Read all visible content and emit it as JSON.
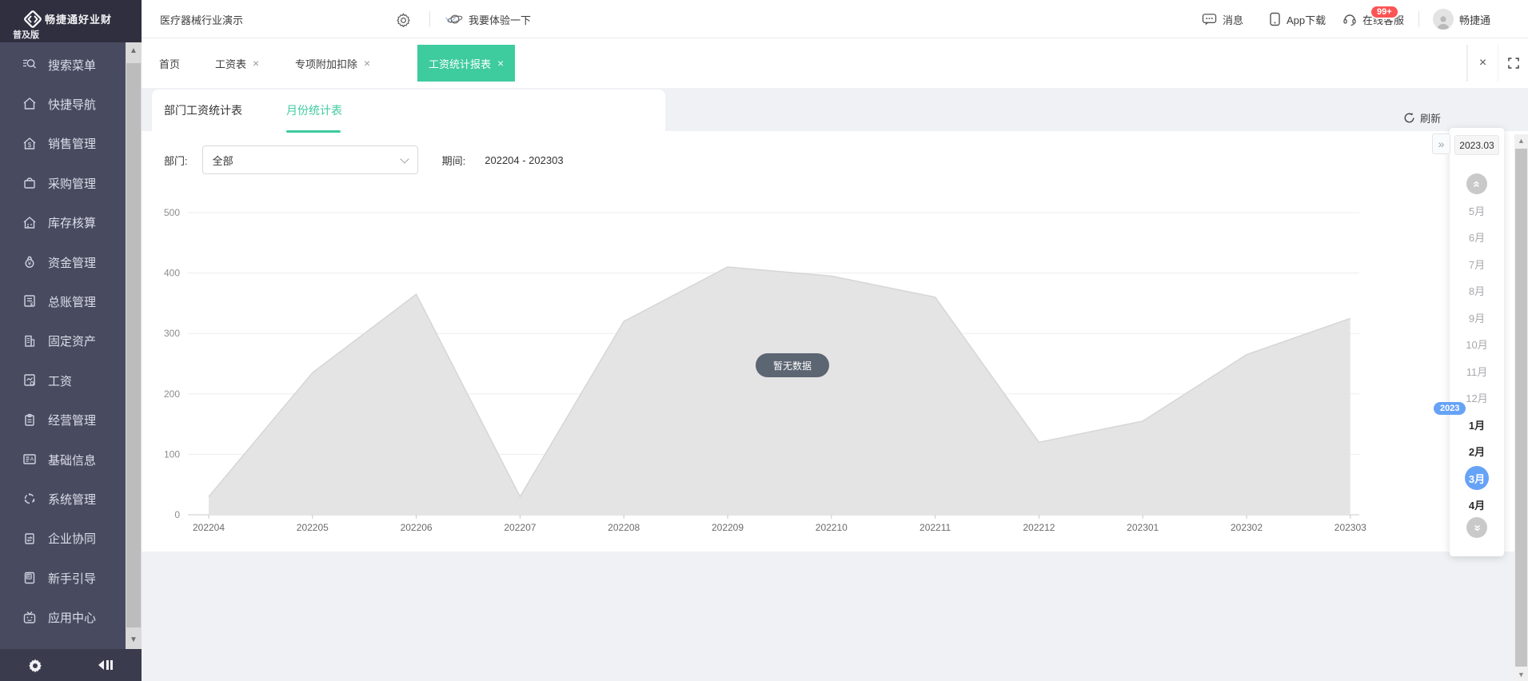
{
  "colors": {
    "accent_green": "#3ecb9e",
    "accent_blue": "#66a3f7",
    "badge_red": "#fa5555",
    "sidebar_bg": "#484b60",
    "chart_fill": "#e4e4e4"
  },
  "brand": {
    "logo_title": "畅捷通好业财",
    "edition": "普及版"
  },
  "topbar": {
    "company": "医疗器械行业演示",
    "experience": "我要体验一下",
    "messages": "消息",
    "messages_badge": "99+",
    "app_download": "App下载",
    "support": "在线客服",
    "user": "畅捷通"
  },
  "workspace_tabs": [
    {
      "label": "首页",
      "closable": false,
      "active": false
    },
    {
      "label": "工资表",
      "closable": true,
      "active": false
    },
    {
      "label": "专项附加扣除",
      "closable": true,
      "active": false
    },
    {
      "label": "工资统计报表",
      "closable": true,
      "active": true
    }
  ],
  "strip_actions": {
    "close_glyph": "×"
  },
  "report_tabs": [
    {
      "label": "部门工资统计表",
      "active": false
    },
    {
      "label": "月份统计表",
      "active": true
    }
  ],
  "toolbar": {
    "refresh_label": "刷新",
    "refresh_glyph": "⟳"
  },
  "filters": {
    "department_label": "部门:",
    "department_value": "全部",
    "period_label": "期间:",
    "period_value": "202204 - 202303"
  },
  "chart_data": {
    "type": "area",
    "x": [
      "202204",
      "202205",
      "202206",
      "202207",
      "202208",
      "202209",
      "202210",
      "202211",
      "202212",
      "202301",
      "202302",
      "202303"
    ],
    "values": [
      30,
      235,
      365,
      30,
      320,
      410,
      395,
      360,
      120,
      155,
      265,
      325
    ],
    "title": "",
    "xlabel": "",
    "ylabel": "",
    "ylim": [
      0,
      500
    ],
    "ytick_step": 100,
    "grid": true,
    "legend": "none",
    "empty_tooltip": "暂无数据"
  },
  "month_panel": {
    "collapse_glyph": "»",
    "header": "2023.03",
    "year_badge": "2023",
    "nav_up_glyph": "«",
    "nav_down_glyph": "«",
    "months": [
      {
        "label": "5月",
        "state": "muted"
      },
      {
        "label": "6月",
        "state": "muted"
      },
      {
        "label": "7月",
        "state": "muted"
      },
      {
        "label": "8月",
        "state": "muted"
      },
      {
        "label": "9月",
        "state": "muted"
      },
      {
        "label": "10月",
        "state": "muted"
      },
      {
        "label": "11月",
        "state": "muted"
      },
      {
        "label": "12月",
        "state": "muted"
      },
      {
        "label": "1月",
        "state": "normal"
      },
      {
        "label": "2月",
        "state": "normal"
      },
      {
        "label": "3月",
        "state": "selected"
      },
      {
        "label": "4月",
        "state": "normal"
      }
    ]
  },
  "sidebar": {
    "items": [
      {
        "label": "搜索菜单",
        "icon": "search-icon"
      },
      {
        "label": "快捷导航",
        "icon": "home-icon"
      },
      {
        "label": "销售管理",
        "icon": "sales-icon"
      },
      {
        "label": "采购管理",
        "icon": "purchase-icon"
      },
      {
        "label": "库存核算",
        "icon": "inventory-icon"
      },
      {
        "label": "资金管理",
        "icon": "funds-icon"
      },
      {
        "label": "总账管理",
        "icon": "ledger-icon"
      },
      {
        "label": "固定资产",
        "icon": "assets-icon"
      },
      {
        "label": "工资",
        "icon": "payroll-icon"
      },
      {
        "label": "经营管理",
        "icon": "operations-icon"
      },
      {
        "label": "基础信息",
        "icon": "baseinfo-icon"
      },
      {
        "label": "系统管理",
        "icon": "system-icon"
      },
      {
        "label": "企业协同",
        "icon": "collaboration-icon"
      },
      {
        "label": "新手引导",
        "icon": "guide-icon"
      },
      {
        "label": "应用中心",
        "icon": "appcenter-icon"
      }
    ]
  }
}
